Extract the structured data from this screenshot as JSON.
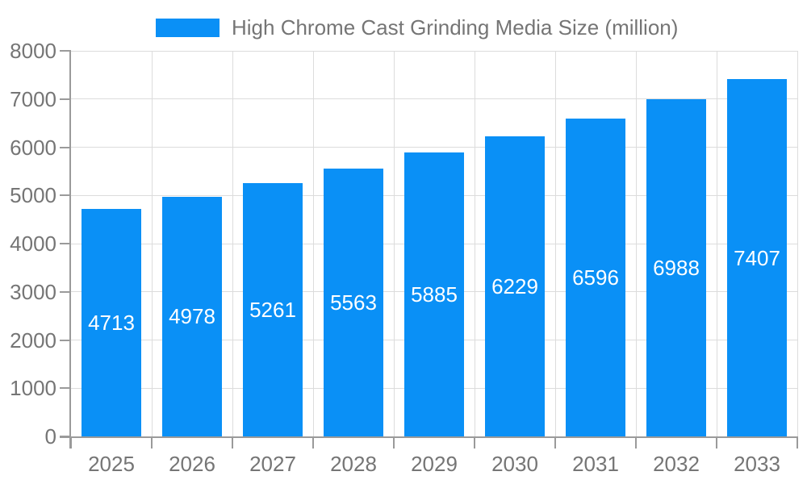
{
  "chart_data": {
    "type": "bar",
    "title": "High Chrome Cast Grinding Media Size (million)",
    "categories": [
      "2025",
      "2026",
      "2027",
      "2028",
      "2029",
      "2030",
      "2031",
      "2032",
      "2033"
    ],
    "values": [
      4713,
      4978,
      5261,
      5563,
      5885,
      6229,
      6596,
      6988,
      7407
    ],
    "xlabel": "",
    "ylabel": "",
    "ylim": [
      0,
      8000
    ],
    "ytick_step": 1000,
    "grid": true,
    "legend_position": "top",
    "value_label_position": "inside-center",
    "colors": {
      "bar": "#0a90f6",
      "grid": "#dcdcdc",
      "axis": "#9a9a9a",
      "tick_label": "#757575",
      "value_label": "#ffffff"
    }
  }
}
